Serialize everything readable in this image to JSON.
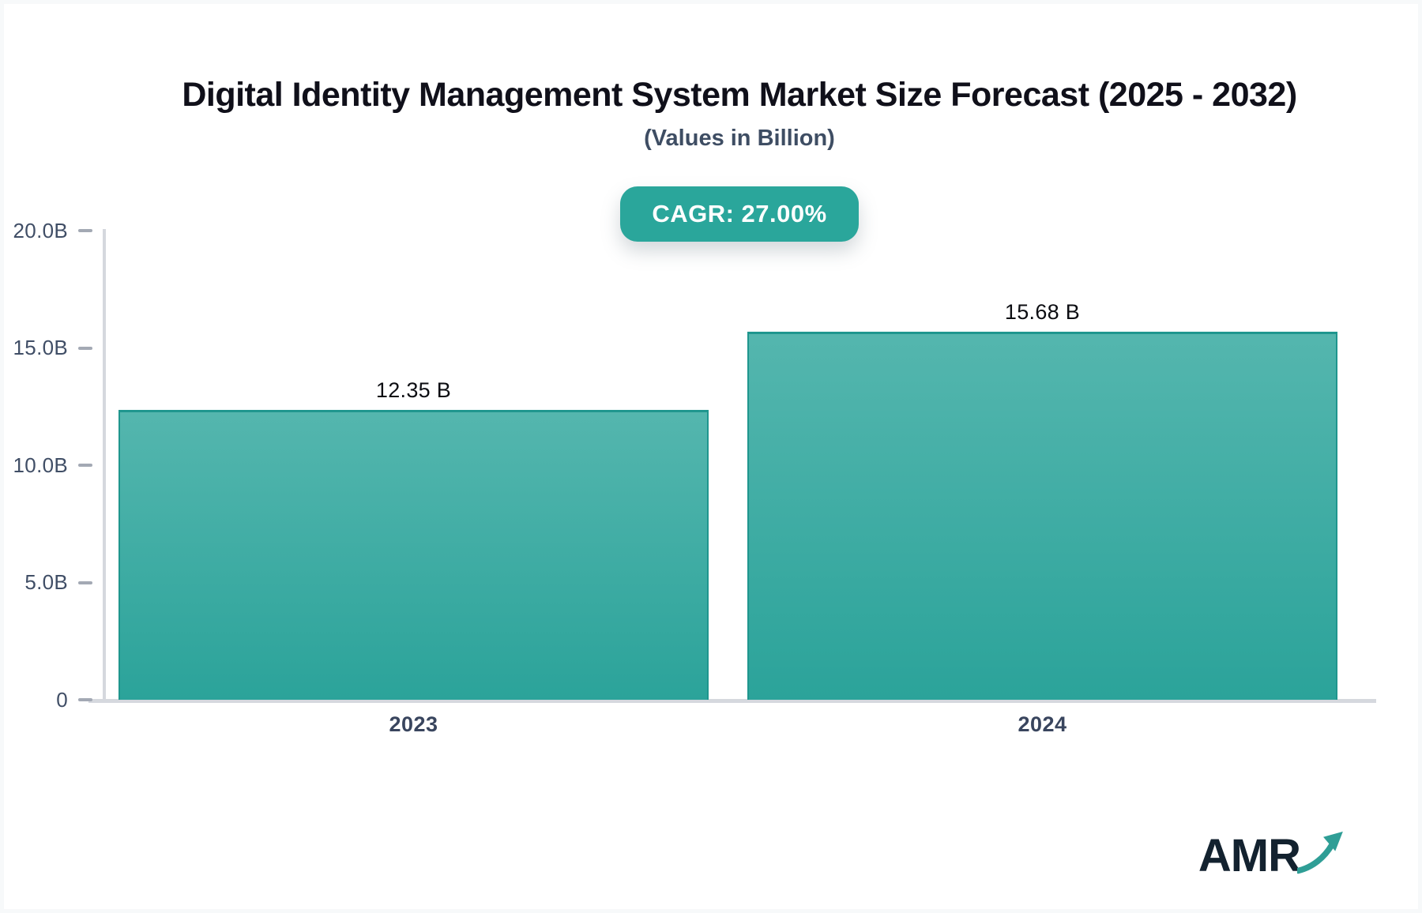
{
  "header": {
    "title": "Digital Identity Management System Market Size Forecast (2025 - 2032)",
    "subtitle": "(Values in Billion)",
    "cagr_badge": "CAGR: 27.00%"
  },
  "chart_data": {
    "type": "bar",
    "title": "Digital Identity Management System Market Size Forecast (2025 - 2032)",
    "subtitle": "(Values in Billion)",
    "cagr_label": "CAGR: 27.00%",
    "categories": [
      "2023",
      "2024"
    ],
    "values": [
      12.35,
      15.68
    ],
    "value_labels": [
      "12.35 B",
      "15.68 B"
    ],
    "ylim": [
      0,
      20
    ],
    "yticks": [
      {
        "value": 20,
        "label": "20.0B"
      },
      {
        "value": 15,
        "label": "15.0B"
      },
      {
        "value": 10,
        "label": "10.0B"
      },
      {
        "value": 5,
        "label": "5.0B"
      },
      {
        "value": 0,
        "label": "0"
      }
    ],
    "grid": false,
    "legend": false,
    "colors": {
      "accent": "#2aa69b",
      "bar_gradient_top": "#54b6ae",
      "bar_gradient_bottom": "#2ba39a",
      "bar_border": "#1f968e",
      "axis": "#d5d8de",
      "tick_text": "#404e66"
    }
  },
  "logo": {
    "text": "AMR",
    "icon": "growth-arrow-icon"
  }
}
